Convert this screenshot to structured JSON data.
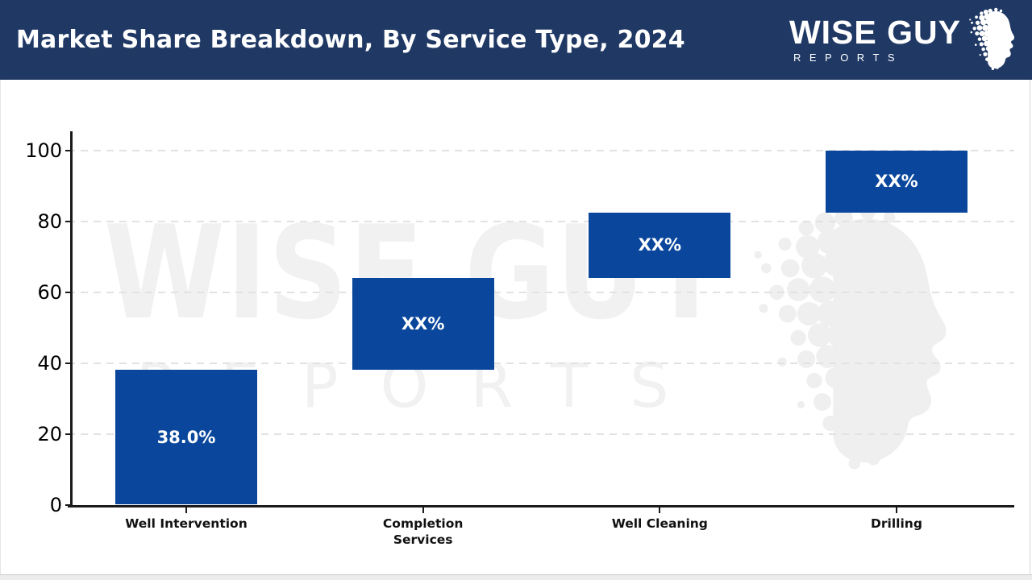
{
  "header": {
    "title": "Market Share Breakdown, By Service Type, 2024",
    "logo": {
      "line1": "WISE GUY",
      "line2": "REPORTS"
    }
  },
  "watermark": {
    "line1": "WISE GUY",
    "line2": "REPORTS"
  },
  "chart_data": {
    "type": "bar",
    "subtype": "floating-waterfall",
    "title": "Market Share Breakdown, By Service Type, 2024",
    "categories": [
      "Well Intervention",
      "Completion Services",
      "Well Cleaning",
      "Drilling"
    ],
    "segments": [
      {
        "category": "Well Intervention",
        "start": 0,
        "end": 38.0,
        "label": "38.0%"
      },
      {
        "category": "Completion Services",
        "start": 38.0,
        "end": 64.0,
        "label": "XX%"
      },
      {
        "category": "Well Cleaning",
        "start": 64.0,
        "end": 82.5,
        "label": "XX%"
      },
      {
        "category": "Drilling",
        "start": 82.5,
        "end": 100.0,
        "label": "XX%"
      }
    ],
    "xlabel": "",
    "ylabel": "",
    "ylim": [
      0,
      106
    ],
    "y_ticks": [
      0,
      20,
      40,
      60,
      80,
      100
    ],
    "grid": "horizontal-dashed",
    "legend": "none",
    "bar_color": "#0a479c",
    "label_color": "#ffffff",
    "grid_color": "#e2e2e2",
    "axis_color": "#1a1a1a"
  }
}
